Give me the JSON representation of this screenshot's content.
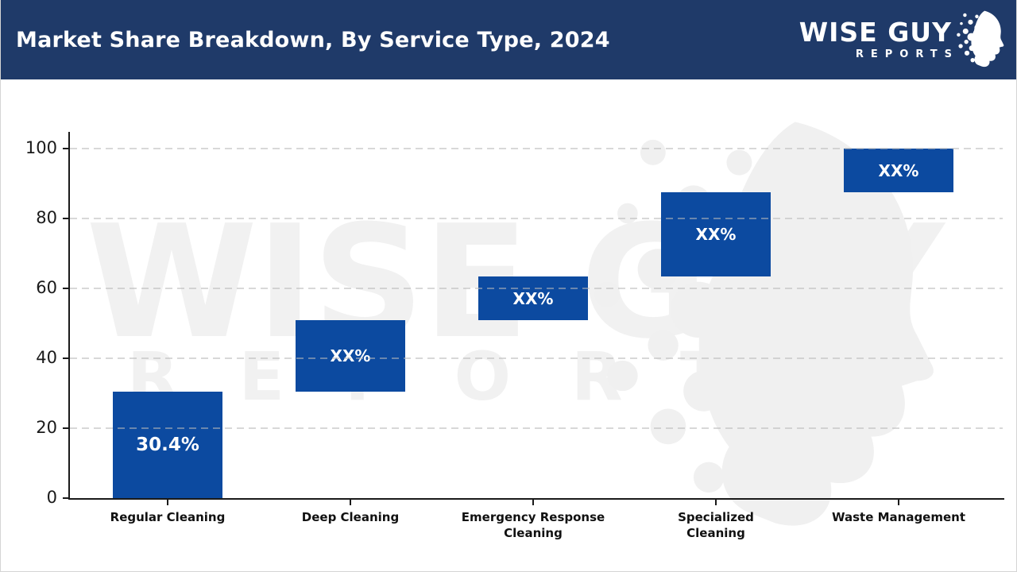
{
  "header": {
    "title": "Market Share Breakdown, By Service Type, 2024",
    "logo": {
      "name": "WISE GUY",
      "tagline": "REPORTS"
    }
  },
  "watermark": {
    "name": "WISE GUY",
    "tagline": "REPORTS"
  },
  "chart_data": {
    "type": "bar",
    "variant": "waterfall",
    "title": "Market Share Breakdown, By Service Type, 2024",
    "unit": "%",
    "categories": [
      "Regular Cleaning",
      "Deep Cleaning",
      "Emergency Response Cleaning",
      "Specialized Cleaning",
      "Waste Management"
    ],
    "category_lines": [
      [
        "Regular Cleaning"
      ],
      [
        "Deep Cleaning"
      ],
      [
        "Emergency Response",
        "Cleaning"
      ],
      [
        "Specialized",
        "Cleaning"
      ],
      [
        "Waste Management"
      ]
    ],
    "segments": [
      {
        "category": "Regular Cleaning",
        "base": 0,
        "top": 30.4,
        "label": "30.4%"
      },
      {
        "category": "Deep Cleaning",
        "base": 30.4,
        "top": 50.8,
        "label": "XX%"
      },
      {
        "category": "Emergency Response Cleaning",
        "base": 50.8,
        "top": 63.4,
        "label": "XX%"
      },
      {
        "category": "Specialized Cleaning",
        "base": 63.4,
        "top": 87.5,
        "label": "XX%"
      },
      {
        "category": "Waste Management",
        "base": 87.5,
        "top": 100,
        "label": "XX%"
      }
    ],
    "y_ticks": [
      0,
      20,
      40,
      60,
      80,
      100
    ],
    "ylim": [
      0,
      104
    ],
    "grid": {
      "axis": "y",
      "style": "dashed",
      "over_bars": true
    },
    "legend": "none",
    "xlabel": "",
    "ylabel": ""
  },
  "colors": {
    "header_bg": "#1f3a69",
    "bar": "#0c4aa0",
    "bar_label": "#ffffff",
    "axis": "#1a1a1a",
    "grid": "#c8c8c8",
    "watermark": "#f0f0f0",
    "title_text": "#ffffff"
  }
}
